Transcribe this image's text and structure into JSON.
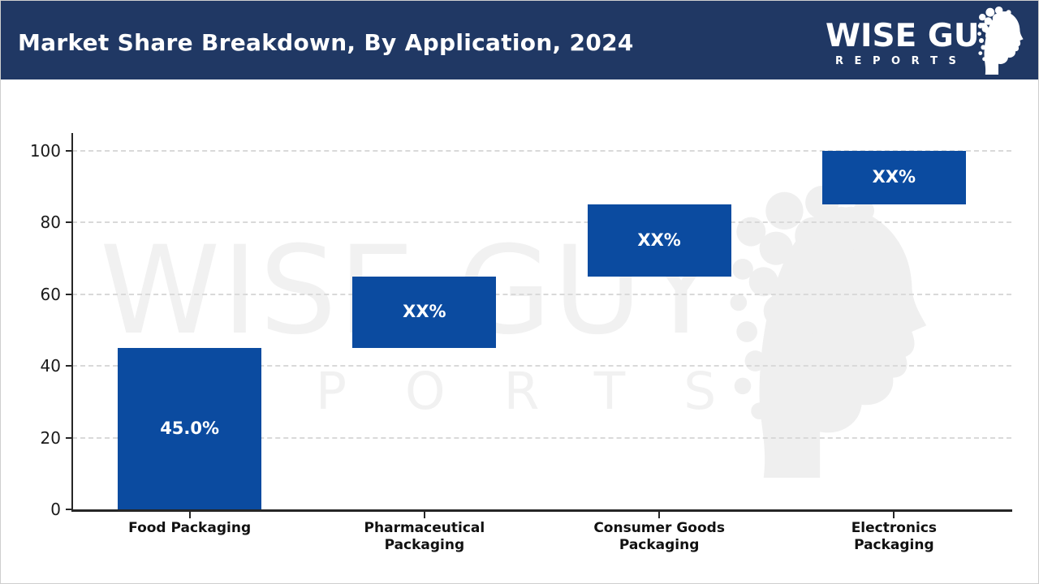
{
  "header": {
    "title": "Market Share Breakdown, By Application, 2024",
    "logo": {
      "name": "WISE GUY",
      "sub": "R E P O R T S"
    }
  },
  "watermark": {
    "line1": "WISE GUY",
    "line2": "PORTS"
  },
  "colors": {
    "header_bg": "#203864",
    "bar": "#0b4ba0",
    "axis": "#262626",
    "gridline": "#d9d9d9",
    "tick_text": "#1a1a1a",
    "bar_label_text": "#ffffff",
    "watermark": "#f1f1f1",
    "logo_text": "#ffffff",
    "page_border": "#cfcfcf"
  },
  "chart_data": {
    "type": "bar",
    "variant": "floating-waterfall",
    "title": "Market Share Breakdown, By Application, 2024",
    "categories": [
      "Food Packaging",
      "Pharmaceutical Packaging",
      "Consumer Goods Packaging",
      "Electronics Packaging"
    ],
    "category_label_lines": [
      [
        "Food Packaging"
      ],
      [
        "Pharmaceutical",
        "Packaging"
      ],
      [
        "Consumer Goods",
        "Packaging"
      ],
      [
        "Electronics",
        "Packaging"
      ]
    ],
    "bars": [
      {
        "category": "Food Packaging",
        "start": 0,
        "end": 45,
        "label": "45.0%"
      },
      {
        "category": "Pharmaceutical Packaging",
        "start": 45,
        "end": 65,
        "label": "XX%"
      },
      {
        "category": "Consumer Goods Packaging",
        "start": 65,
        "end": 85,
        "label": "XX%"
      },
      {
        "category": "Electronics Packaging",
        "start": 85,
        "end": 100,
        "label": "XX%"
      }
    ],
    "ylim": [
      0,
      105
    ],
    "yticks": [
      0,
      20,
      40,
      60,
      80,
      100
    ],
    "xlabel": "",
    "ylabel": "",
    "grid": "dashed-horizontal",
    "legend": "none"
  }
}
